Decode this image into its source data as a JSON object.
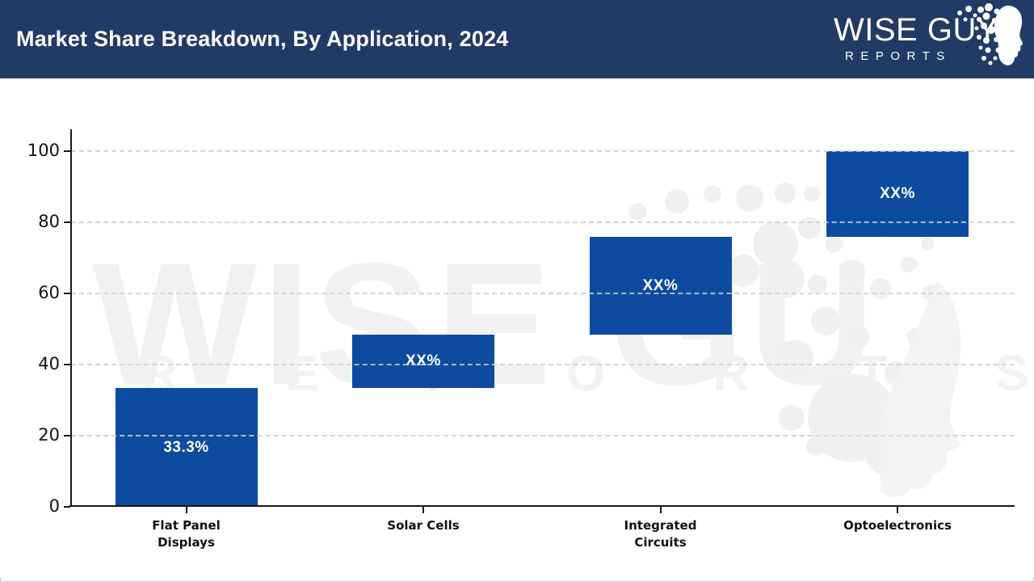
{
  "header": {
    "title": "Market Share Breakdown, By Application, 2024",
    "logo": {
      "line1": "WISE GUY",
      "line2": "R E P O R T S"
    }
  },
  "colors": {
    "header_bg": "#213A66",
    "bar": "#0C4BA0",
    "grid": "#cfcfcf",
    "axis": "#1a1a1a",
    "bar_label": "#ffffff",
    "watermark": "#f1f1f2"
  },
  "watermark": {
    "line1": "WISE GU",
    "line2": "R E P O R T S"
  },
  "chart_data": {
    "type": "bar",
    "subtype": "waterfall-stacked-segments",
    "title": "Market Share Breakdown, By Application, 2024",
    "xlabel": "",
    "ylabel": "",
    "ylim": [
      0,
      105
    ],
    "yticks": [
      0,
      20,
      40,
      60,
      80,
      100
    ],
    "grid": "horizontal-dashed",
    "legend": "none",
    "categories": [
      "Flat Panel\nDisplays",
      "Solar Cells",
      "Integrated\nCircuits",
      "Optoelectronics"
    ],
    "segments": [
      {
        "category": "Flat Panel Displays",
        "from": 0,
        "to": 33.3,
        "label": "33.3%"
      },
      {
        "category": "Solar Cells",
        "from": 33.3,
        "to": 48.5,
        "label": "XX%"
      },
      {
        "category": "Integrated Circuits",
        "from": 48.5,
        "to": 75.8,
        "label": "XX%"
      },
      {
        "category": "Optoelectronics",
        "from": 75.8,
        "to": 100,
        "label": "XX%"
      }
    ]
  }
}
